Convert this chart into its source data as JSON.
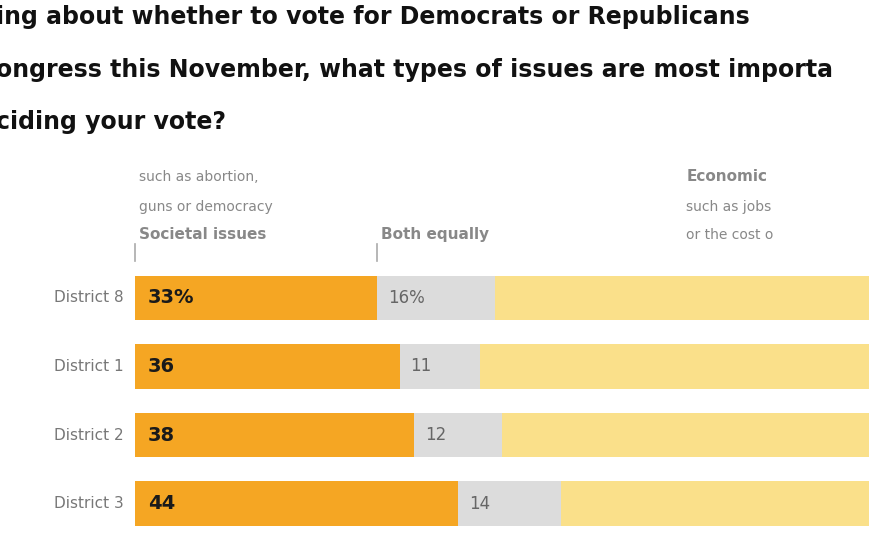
{
  "districts": [
    "District 8",
    "District 1",
    "District 2",
    "District 3"
  ],
  "societal": [
    33,
    36,
    38,
    44
  ],
  "both": [
    16,
    11,
    12,
    14
  ],
  "economic": [
    51,
    53,
    50,
    42
  ],
  "societal_labels": [
    "33%",
    "36",
    "38",
    "44"
  ],
  "both_labels": [
    "16%",
    "11",
    "12",
    "14"
  ],
  "color_societal": "#F5A623",
  "color_both": "#DCDCDC",
  "color_economic": "#FAE08A",
  "background": "#FFFFFF",
  "title_line1": "ing about whether to vote for Democrats or Republicans",
  "title_line2": "ongress this November, what types of issues are most importa",
  "title_line3": "ciding your vote?",
  "header_societal_bold": "Societal issues",
  "header_societal_sub1": "such as abortion,",
  "header_societal_sub2": "guns or democracy",
  "header_both_bold": "Both equally",
  "header_economic_bold": "Economic",
  "header_economic_sub1": "such as jobs",
  "header_economic_sub2": "or the cost o",
  "bar_height": 0.65,
  "xlim_max": 100,
  "district_label_color": "#777777",
  "header_bold_color": "#888888",
  "header_sub_color": "#888888",
  "tick_color": "#AAAAAA",
  "societal_label_color": "#1a1a1a",
  "both_label_color": "#666666",
  "title_color": "#111111"
}
